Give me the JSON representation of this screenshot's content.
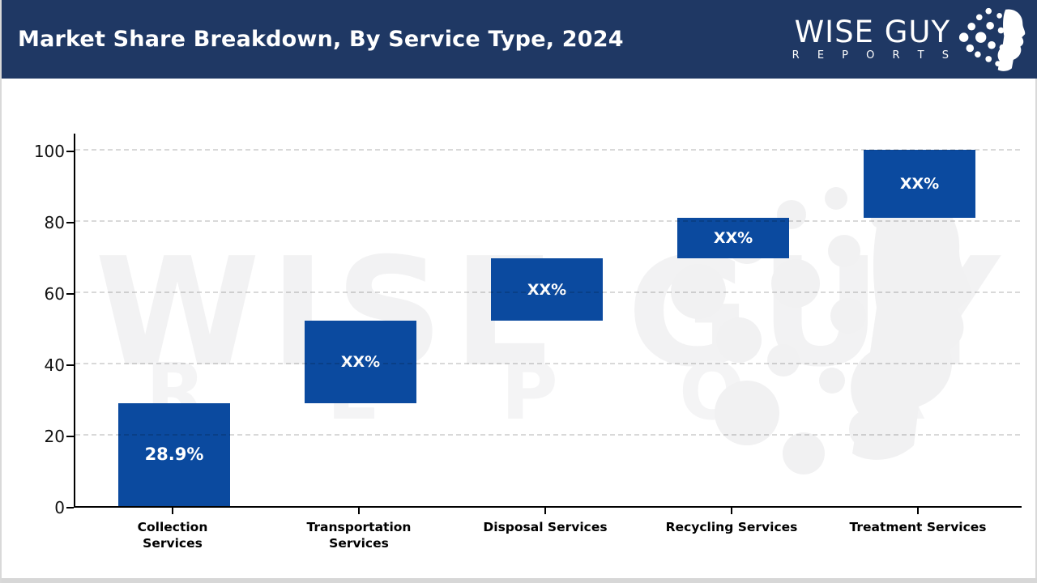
{
  "header": {
    "title": "Market Share Breakdown, By Service Type, 2024",
    "logo": {
      "name": "WISE GUY",
      "tagline": "R E P O R T S",
      "face_icon": "dotted-head-profile"
    }
  },
  "watermark": {
    "line1": "WISE GUY",
    "line2": "R O R T S",
    "line2_display": "R E P O R T S"
  },
  "colors": {
    "header_bg": "#1f3864",
    "bar": "#0b4a9f",
    "page_bg": "#ffffff",
    "grid": "rgba(0,0,0,0.15)",
    "watermark": "#f2f2f3",
    "footer_strip": "#d7d7d7"
  },
  "chart_data": {
    "type": "bar",
    "subtype": "waterfall",
    "title": "Market Share Breakdown, By Service Type, 2024",
    "xlabel": "",
    "ylabel": "",
    "ylim": [
      0,
      105
    ],
    "yticks": [
      0,
      20,
      40,
      60,
      80,
      100
    ],
    "grid": "horizontal-dashed-over-bars",
    "legend": false,
    "bar_color": "#0b4a9f",
    "categories": [
      "Collection\nServices",
      "Transportation\nServices",
      "Disposal Services",
      "Recycling Services",
      "Treatment Services"
    ],
    "segments": [
      {
        "category": "Collection Services",
        "start": 0,
        "end": 28.9,
        "label": "28.9%"
      },
      {
        "category": "Transportation Services",
        "start": 28.9,
        "end": 52.0,
        "label": "XX%"
      },
      {
        "category": "Disposal Services",
        "start": 52.0,
        "end": 69.5,
        "label": "XX%"
      },
      {
        "category": "Recycling Services",
        "start": 69.5,
        "end": 81.0,
        "label": "XX%"
      },
      {
        "category": "Treatment Services",
        "start": 81.0,
        "end": 100.0,
        "label": "XX%"
      }
    ]
  }
}
